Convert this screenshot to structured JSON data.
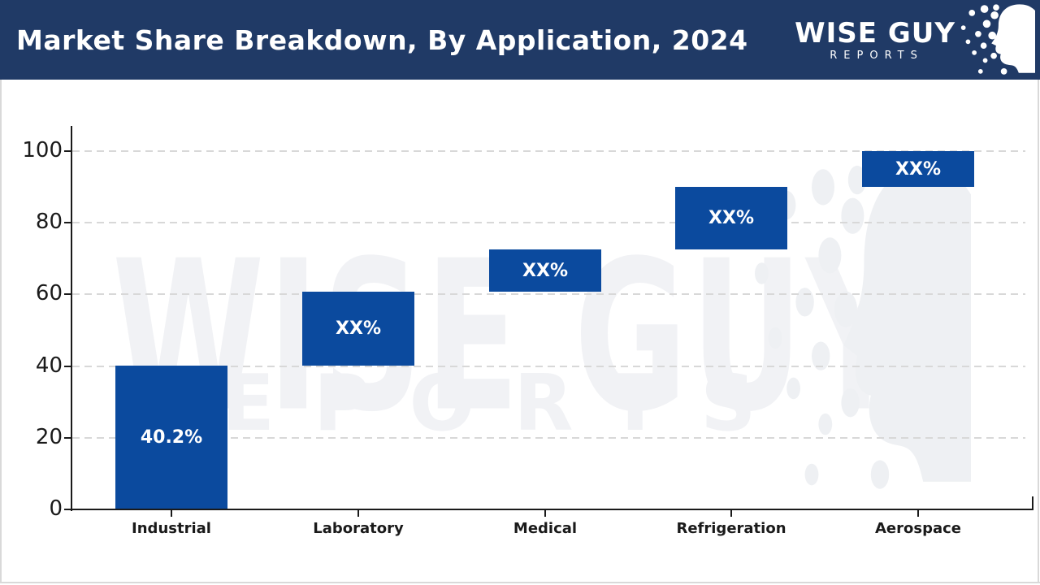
{
  "header": {
    "title": "Market Share Breakdown, By Application, 2024",
    "bg_color": "#203a66",
    "text_color": "#ffffff",
    "logo": {
      "line1": "WISE GUY",
      "line2": "REPORTS"
    }
  },
  "watermark": {
    "line1": "WISE GUY",
    "line2": "REPORTS"
  },
  "chart_data": {
    "type": "bar",
    "subtype": "waterfall",
    "title": "",
    "xlabel": "",
    "ylabel": "",
    "categories": [
      "Industrial",
      "Laboratory",
      "Medical",
      "Refrigeration",
      "Aerospace"
    ],
    "segments": [
      {
        "category": "Industrial",
        "start": 0,
        "end": 40.2,
        "label": "40.2%"
      },
      {
        "category": "Laboratory",
        "start": 40.2,
        "end": 60.8,
        "label": "XX%"
      },
      {
        "category": "Medical",
        "start": 60.8,
        "end": 72.5,
        "label": "XX%"
      },
      {
        "category": "Refrigeration",
        "start": 72.5,
        "end": 90.0,
        "label": "XX%"
      },
      {
        "category": "Aerospace",
        "start": 90.0,
        "end": 100.0,
        "label": "XX%"
      }
    ],
    "yticks": [
      0,
      20,
      40,
      60,
      80,
      100
    ],
    "ylim": [
      0,
      100
    ],
    "grid": "horizontal-dashed",
    "legend": "none",
    "bar_color": "#0b4a9e",
    "bar_label_color": "#ffffff",
    "axis_color": "#1a1a1a",
    "gridline_color": "#d8d8d8"
  }
}
